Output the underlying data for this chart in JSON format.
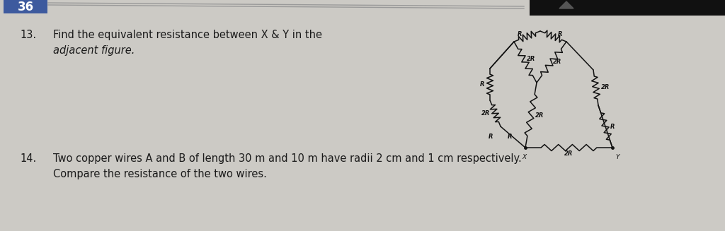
{
  "bg_color": "#cccac5",
  "header_bg": "#3d5a9e",
  "header_text": "36",
  "header_text_color": "#ffffff",
  "q13_number": "13.",
  "q13_line1": "Find the equivalent resistance between X & Y in the",
  "q13_line2": "adjacent figure.",
  "q14_number": "14.",
  "q14_line1": "Two copper wires A and B of length 30 m and 10 m have radii 2 cm and 1 cm respectively.",
  "q14_line2": "Compare the resistance of the two wires.",
  "text_color": "#1a1a1a",
  "circuit_color": "#111111",
  "line1_color": "#888888",
  "photo_color": "#111111",
  "figsize": [
    10.24,
    3.27
  ],
  "dpi": 100
}
